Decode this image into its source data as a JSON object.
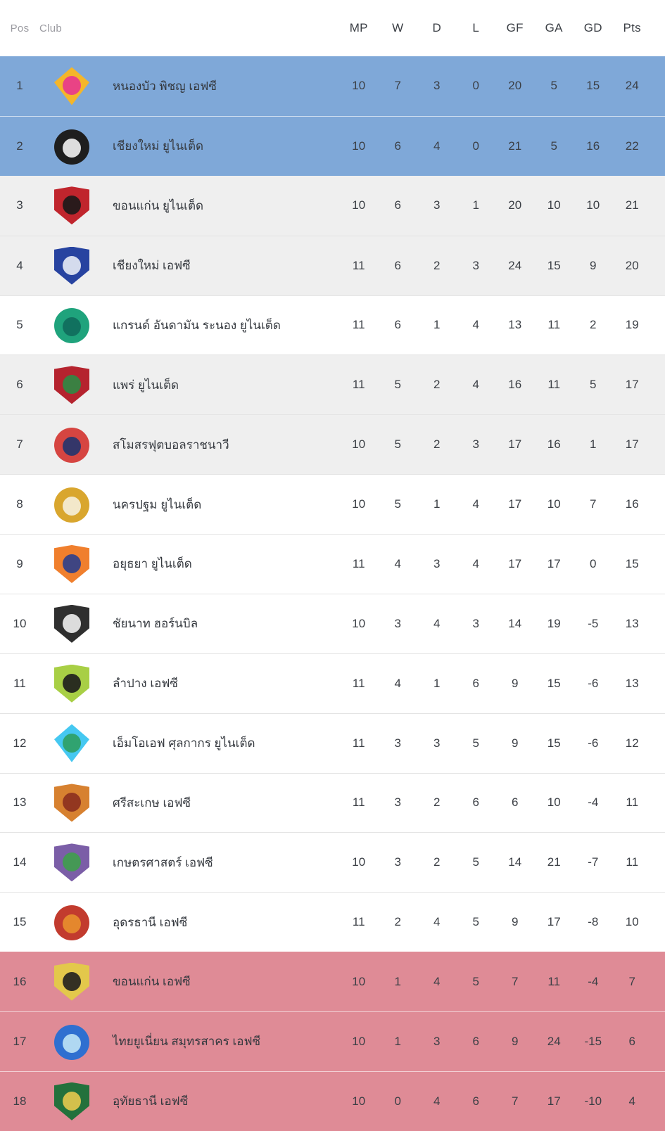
{
  "table": {
    "headers": {
      "pos": "Pos",
      "club": "Club",
      "mp": "MP",
      "w": "W",
      "d": "D",
      "l": "L",
      "gf": "GF",
      "ga": "GA",
      "gd": "GD",
      "pts": "Pts"
    },
    "rows": [
      {
        "pos": "1",
        "club": "หนองบัว พิชญ เอฟซี",
        "mp": "10",
        "w": "7",
        "d": "3",
        "l": "0",
        "gf": "20",
        "ga": "5",
        "gd": "15",
        "pts": "24",
        "zone": "promotion",
        "crest": {
          "shape": "diamond",
          "colors": [
            "#f4b62a",
            "#e8368f"
          ]
        }
      },
      {
        "pos": "2",
        "club": "เชียงใหม่ ยูไนเต็ด",
        "mp": "10",
        "w": "6",
        "d": "4",
        "l": "0",
        "gf": "21",
        "ga": "5",
        "gd": "16",
        "pts": "22",
        "zone": "promotion",
        "crest": {
          "shape": "circle",
          "colors": [
            "#1e1e1e",
            "#f2f2f2"
          ]
        }
      },
      {
        "pos": "3",
        "club": "ขอนแก่น ยูไนเต็ด",
        "mp": "10",
        "w": "6",
        "d": "3",
        "l": "1",
        "gf": "20",
        "ga": "10",
        "gd": "10",
        "pts": "21",
        "zone": "stripe",
        "crest": {
          "shape": "shield",
          "colors": [
            "#c0252d",
            "#1a1a1a"
          ]
        }
      },
      {
        "pos": "4",
        "club": "เชียงใหม่ เอฟซี",
        "mp": "11",
        "w": "6",
        "d": "2",
        "l": "3",
        "gf": "24",
        "ga": "15",
        "gd": "9",
        "pts": "20",
        "zone": "stripe",
        "crest": {
          "shape": "shield",
          "colors": [
            "#2743a0",
            "#e8ecf5"
          ]
        }
      },
      {
        "pos": "5",
        "club": "แกรนด์ อันดามัน ระนอง ยูไนเต็ด",
        "mp": "11",
        "w": "6",
        "d": "1",
        "l": "4",
        "gf": "13",
        "ga": "11",
        "gd": "2",
        "pts": "19",
        "zone": "none",
        "crest": {
          "shape": "circle",
          "colors": [
            "#1fa37c",
            "#0f6b5c"
          ]
        }
      },
      {
        "pos": "6",
        "club": "แพร่ ยูไนเต็ด",
        "mp": "11",
        "w": "5",
        "d": "2",
        "l": "4",
        "gf": "16",
        "ga": "11",
        "gd": "5",
        "pts": "17",
        "zone": "stripe",
        "crest": {
          "shape": "shield",
          "colors": [
            "#b5232e",
            "#2e8b45"
          ]
        }
      },
      {
        "pos": "7",
        "club": "สโมสรฟุตบอลราชนาวี",
        "mp": "10",
        "w": "5",
        "d": "2",
        "l": "3",
        "gf": "17",
        "ga": "16",
        "gd": "1",
        "pts": "17",
        "zone": "stripe",
        "crest": {
          "shape": "circle",
          "colors": [
            "#d64541",
            "#22346e"
          ]
        }
      },
      {
        "pos": "8",
        "club": "นครปฐม ยูไนเต็ด",
        "mp": "10",
        "w": "5",
        "d": "1",
        "l": "4",
        "gf": "17",
        "ga": "10",
        "gd": "7",
        "pts": "16",
        "zone": "none",
        "crest": {
          "shape": "circle",
          "colors": [
            "#d9a62e",
            "#f5f0dc"
          ]
        }
      },
      {
        "pos": "9",
        "club": "อยุธยา ยูไนเต็ด",
        "mp": "11",
        "w": "4",
        "d": "3",
        "l": "4",
        "gf": "17",
        "ga": "17",
        "gd": "0",
        "pts": "15",
        "zone": "none",
        "crest": {
          "shape": "shield",
          "colors": [
            "#f07f2d",
            "#2b3f8c"
          ]
        }
      },
      {
        "pos": "10",
        "club": "ชัยนาท ฮอร์นบิล",
        "mp": "10",
        "w": "3",
        "d": "4",
        "l": "3",
        "gf": "14",
        "ga": "19",
        "gd": "-5",
        "pts": "13",
        "zone": "none",
        "crest": {
          "shape": "shield",
          "colors": [
            "#2f2f2f",
            "#f0f0f0"
          ]
        }
      },
      {
        "pos": "11",
        "club": "ลำปาง เอฟซี",
        "mp": "11",
        "w": "4",
        "d": "1",
        "l": "6",
        "gf": "9",
        "ga": "15",
        "gd": "-6",
        "pts": "13",
        "zone": "none",
        "crest": {
          "shape": "shield",
          "colors": [
            "#a8cf45",
            "#1c1c1c"
          ]
        }
      },
      {
        "pos": "12",
        "club": "เอ็มโอเอฟ ศุลกากร ยูไนเต็ด",
        "mp": "11",
        "w": "3",
        "d": "3",
        "l": "5",
        "gf": "9",
        "ga": "15",
        "gd": "-6",
        "pts": "12",
        "zone": "none",
        "crest": {
          "shape": "diamond",
          "colors": [
            "#45c8f1",
            "#2e9e62"
          ]
        }
      },
      {
        "pos": "13",
        "club": "ศรีสะเกษ เอฟซี",
        "mp": "11",
        "w": "3",
        "d": "2",
        "l": "6",
        "gf": "6",
        "ga": "10",
        "gd": "-4",
        "pts": "11",
        "zone": "none",
        "crest": {
          "shape": "shield",
          "colors": [
            "#d78130",
            "#8c2f1f"
          ]
        }
      },
      {
        "pos": "14",
        "club": "เกษตรศาสตร์ เอฟซี",
        "mp": "10",
        "w": "3",
        "d": "2",
        "l": "5",
        "gf": "14",
        "ga": "21",
        "gd": "-7",
        "pts": "11",
        "zone": "none",
        "crest": {
          "shape": "shield",
          "colors": [
            "#7b5ea7",
            "#3f9e4d"
          ]
        }
      },
      {
        "pos": "15",
        "club": "อุดรธานี เอฟซี",
        "mp": "11",
        "w": "2",
        "d": "4",
        "l": "5",
        "gf": "9",
        "ga": "17",
        "gd": "-8",
        "pts": "10",
        "zone": "none",
        "crest": {
          "shape": "circle",
          "colors": [
            "#c23b2e",
            "#e8902e"
          ]
        }
      },
      {
        "pos": "16",
        "club": "ขอนแก่น เอฟซี",
        "mp": "10",
        "w": "1",
        "d": "4",
        "l": "5",
        "gf": "7",
        "ga": "11",
        "gd": "-4",
        "pts": "7",
        "zone": "relegation",
        "crest": {
          "shape": "shield",
          "colors": [
            "#e3c84b",
            "#1f1f1f"
          ]
        }
      },
      {
        "pos": "17",
        "club": "ไทยยูเนี่ยน สมุทรสาคร เอฟซี",
        "mp": "10",
        "w": "1",
        "d": "3",
        "l": "6",
        "gf": "9",
        "ga": "24",
        "gd": "-15",
        "pts": "6",
        "zone": "relegation",
        "crest": {
          "shape": "circle",
          "colors": [
            "#2f6fd0",
            "#bfe3f5"
          ]
        }
      },
      {
        "pos": "18",
        "club": "อุทัยธานี เอฟซี",
        "mp": "10",
        "w": "0",
        "d": "4",
        "l": "6",
        "gf": "7",
        "ga": "17",
        "gd": "-10",
        "pts": "4",
        "zone": "relegation",
        "crest": {
          "shape": "shield",
          "colors": [
            "#23713c",
            "#e7c94e"
          ]
        }
      }
    ]
  },
  "colors": {
    "promotion_bg": "#7fa8d8",
    "relegation_bg": "#df8b96",
    "stripe_bg": "#efefef",
    "row_bg": "#ffffff",
    "separator": "#e4e4e4",
    "separator_on_color": "rgba(255,255,255,0.6)",
    "header_text": "#9b9ba1",
    "body_text": "#3b3f45"
  }
}
